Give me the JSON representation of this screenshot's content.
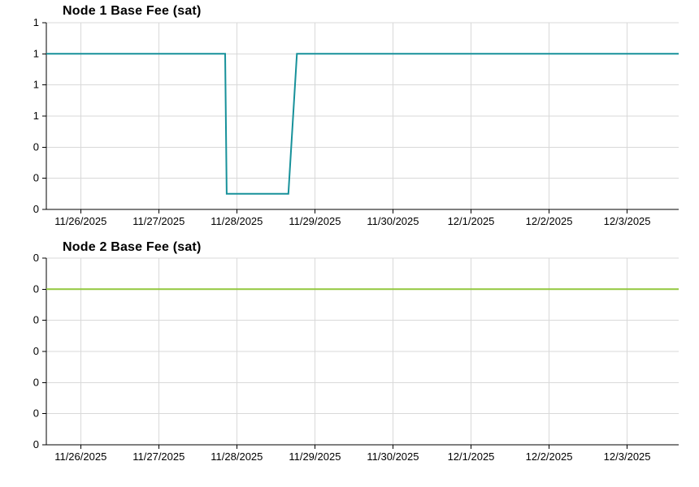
{
  "page": {
    "background_color": "#ffffff",
    "grid_color": "#d9d9d9",
    "axis_color": "#000000",
    "text_color": "#000000"
  },
  "chart_data": [
    {
      "type": "line",
      "title": "Node 1 Base Fee (sat)",
      "xlabel": "",
      "ylabel": "",
      "legend": "none",
      "grid": true,
      "x_units": "days since 11/26/2025 00:00",
      "xlim": [
        -0.44,
        7.66
      ],
      "ylim": [
        0,
        1.2
      ],
      "x_ticks": [
        {
          "x": 0,
          "label": "11/26/2025"
        },
        {
          "x": 1,
          "label": "11/27/2025"
        },
        {
          "x": 2,
          "label": "11/28/2025"
        },
        {
          "x": 3,
          "label": "11/29/2025"
        },
        {
          "x": 4,
          "label": "11/30/2025"
        },
        {
          "x": 5,
          "label": "12/1/2025"
        },
        {
          "x": 6,
          "label": "12/2/2025"
        },
        {
          "x": 7,
          "label": "12/3/2025"
        }
      ],
      "y_ticks": [
        {
          "v": 1.2,
          "label": "1"
        },
        {
          "v": 1.0,
          "label": "1"
        },
        {
          "v": 0.8,
          "label": "1"
        },
        {
          "v": 0.6,
          "label": "1"
        },
        {
          "v": 0.4,
          "label": "0"
        },
        {
          "v": 0.2,
          "label": "0"
        },
        {
          "v": 0.0,
          "label": "0"
        }
      ],
      "series": [
        {
          "name": "Node 1 base fee",
          "color": "#17919A",
          "points": [
            [
              -0.44,
              1.0
            ],
            [
              1.85,
              1.0
            ],
            [
              1.87,
              0.1
            ],
            [
              2.66,
              0.1
            ],
            [
              2.77,
              1.0
            ],
            [
              7.66,
              1.0
            ]
          ]
        }
      ]
    },
    {
      "type": "line",
      "title": "Node 2 Base Fee (sat)",
      "xlabel": "",
      "ylabel": "",
      "legend": "none",
      "grid": true,
      "x_units": "days since 11/26/2025 00:00",
      "xlim": [
        -0.44,
        7.66
      ],
      "ylim": [
        0,
        0.12
      ],
      "x_ticks": [
        {
          "x": 0,
          "label": "11/26/2025"
        },
        {
          "x": 1,
          "label": "11/27/2025"
        },
        {
          "x": 2,
          "label": "11/28/2025"
        },
        {
          "x": 3,
          "label": "11/29/2025"
        },
        {
          "x": 4,
          "label": "11/30/2025"
        },
        {
          "x": 5,
          "label": "12/1/2025"
        },
        {
          "x": 6,
          "label": "12/2/2025"
        },
        {
          "x": 7,
          "label": "12/3/2025"
        }
      ],
      "y_ticks": [
        {
          "v": 0.12,
          "label": "0"
        },
        {
          "v": 0.1,
          "label": "0"
        },
        {
          "v": 0.08,
          "label": "0"
        },
        {
          "v": 0.06,
          "label": "0"
        },
        {
          "v": 0.04,
          "label": "0"
        },
        {
          "v": 0.02,
          "label": "0"
        },
        {
          "v": 0.0,
          "label": "0"
        }
      ],
      "series": [
        {
          "name": "Node 2 base fee",
          "color": "#92C83E",
          "points": [
            [
              -0.44,
              0.1
            ],
            [
              7.66,
              0.1
            ]
          ]
        }
      ]
    }
  ]
}
